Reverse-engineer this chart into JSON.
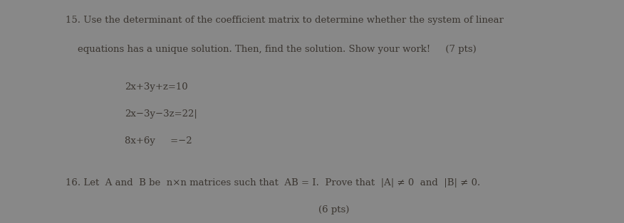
{
  "bg_left_color": "#888888",
  "bg_right_color": "#e8e7e4",
  "paper_boundary": 0.095,
  "title_line1": "15. Use the determinant of the coefficient matrix to determine whether the system of linear",
  "title_line2": "    equations has a unique solution. Then, find the solution. Show your work!     (7 pts)",
  "eq1": "2x+3y+z=10",
  "eq2": "2x−3y−3z=22|",
  "eq3": "8x+6y     =−2",
  "problem16_line1": "16. Let  A and  B be  n×n matrices such that  AB = I.  Prove that  |A| ≠ 0  and  |B| ≠ 0.",
  "problem16_line2": "(6 pts)",
  "text_color": "#3a3530",
  "font_size_body": 9.5,
  "font_size_eq": 9.5
}
